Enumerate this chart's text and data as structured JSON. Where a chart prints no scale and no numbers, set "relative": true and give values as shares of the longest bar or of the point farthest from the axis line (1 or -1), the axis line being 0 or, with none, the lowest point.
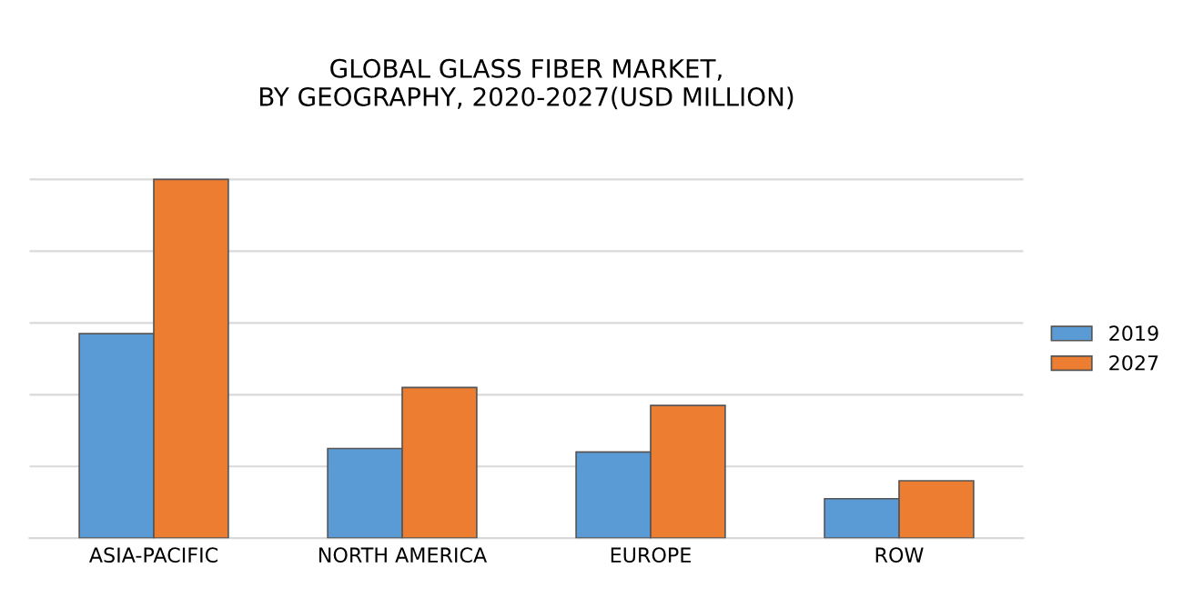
{
  "chart_data": {
    "type": "bar",
    "title": "GLOBAL GLASS FIBER MARKET,\nBY GEOGRAPHY, 2020-2027(USD MILLION)",
    "categories": [
      "ASIA-PACIFIC",
      "NORTH AMERICA",
      "EUROPE",
      "ROW"
    ],
    "series": [
      {
        "name": "2019",
        "color": "#5b9bd5",
        "values": [
          0.57,
          0.25,
          0.24,
          0.11
        ]
      },
      {
        "name": "2027",
        "color": "#ed7d31",
        "values": [
          1,
          0.42,
          0.37,
          0.16
        ]
      }
    ],
    "relative": true,
    "grid": "y",
    "legend": "right"
  }
}
